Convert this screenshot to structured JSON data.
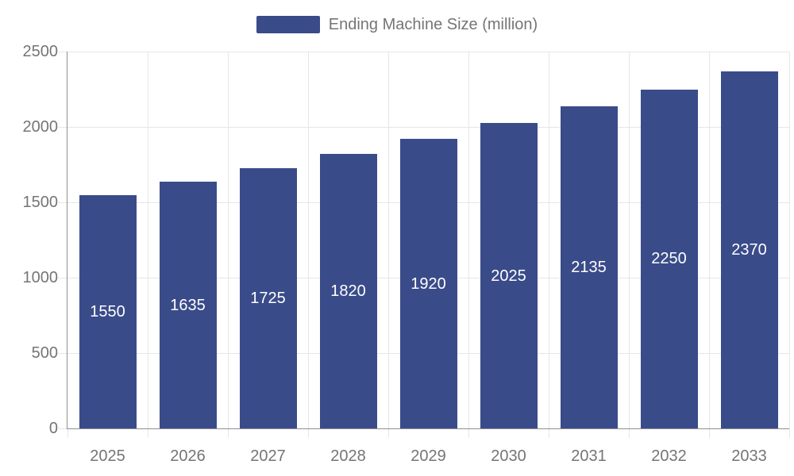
{
  "legend": {
    "label": "Ending Machine Size (million)",
    "swatch_color": "#3A4B8A"
  },
  "chart_data": {
    "type": "bar",
    "title": "",
    "xlabel": "",
    "ylabel": "",
    "categories": [
      "2025",
      "2026",
      "2027",
      "2028",
      "2029",
      "2030",
      "2031",
      "2032",
      "2033"
    ],
    "series": [
      {
        "name": "Ending Machine Size (million)",
        "values": [
          1550,
          1635,
          1725,
          1820,
          1920,
          2025,
          2135,
          2250,
          2370
        ]
      }
    ],
    "ylim": [
      0,
      2500
    ],
    "yticks": [
      0,
      500,
      1000,
      1500,
      2000,
      2500
    ],
    "grid": true,
    "legend_position": "top-center",
    "bar_labels_inside": true
  },
  "colors": {
    "bar": "#3A4B8A",
    "bar_label": "#ffffff",
    "grid": "#e6e6e6",
    "axis": "#8f8f8f",
    "text": "#757575",
    "background": "#ffffff"
  }
}
